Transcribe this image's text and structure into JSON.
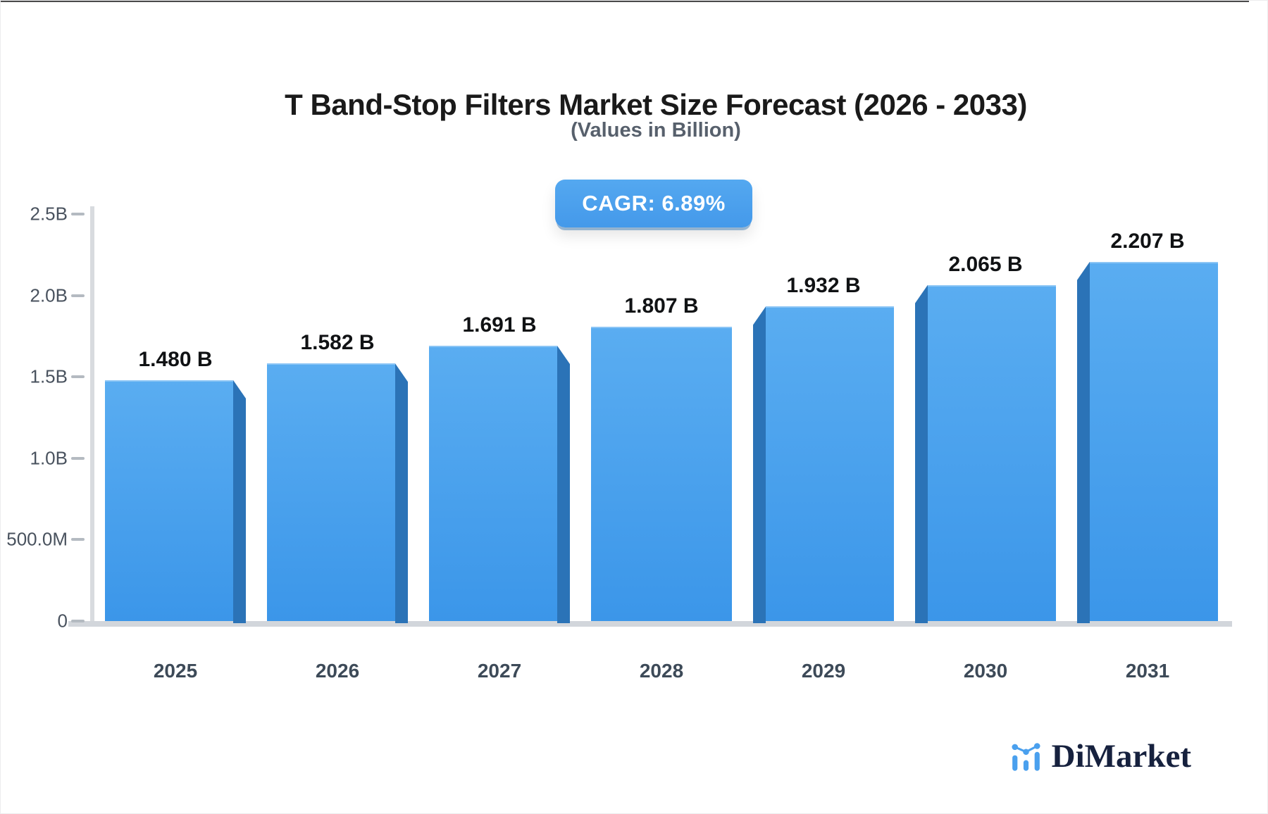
{
  "header": {
    "title": "T Band-Stop Filters Market Size Forecast (2026 - 2033)",
    "subtitle": "(Values in Billion)"
  },
  "badge": {
    "label": "CAGR: 6.89%",
    "bg_color": "#4aa0ec",
    "text_color": "#ffffff"
  },
  "chart_data": {
    "type": "bar",
    "title": "T Band-Stop Filters Market Size Forecast (2026 - 2033)",
    "subtitle": "(Values in Billion)",
    "categories": [
      "2025",
      "2026",
      "2027",
      "2028",
      "2029",
      "2030",
      "2031"
    ],
    "values": [
      1.48,
      1.582,
      1.691,
      1.807,
      1.932,
      2.065,
      2.207
    ],
    "value_labels": [
      "1.480 B",
      "1.582 B",
      "1.691 B",
      "1.807 B",
      "1.932 B",
      "2.065 B",
      "2.207 B"
    ],
    "xlabel": "",
    "ylabel": "",
    "ylim": [
      0,
      2.5
    ],
    "yticks": [
      {
        "label": "0",
        "value": 0
      },
      {
        "label": "500.0M",
        "value": 0.5
      },
      {
        "label": "1.0B",
        "value": 1.0
      },
      {
        "label": "1.5B",
        "value": 1.5
      },
      {
        "label": "2.0B",
        "value": 2.0
      },
      {
        "label": "2.5B",
        "value": 2.5
      }
    ],
    "grid": false,
    "legend": "none",
    "bar_color_top": "#5aadf1",
    "bar_color_bottom": "#3b96e9",
    "bar_side_color": "#2b73b7",
    "bevel_sides": [
      "right",
      "right",
      "right",
      "none",
      "left",
      "left",
      "left"
    ]
  },
  "branding": {
    "name": "DiMarket",
    "icon": "bar-line-chart-logo-icon",
    "icon_color": "#4aa0ee",
    "text_color": "#16213e"
  }
}
